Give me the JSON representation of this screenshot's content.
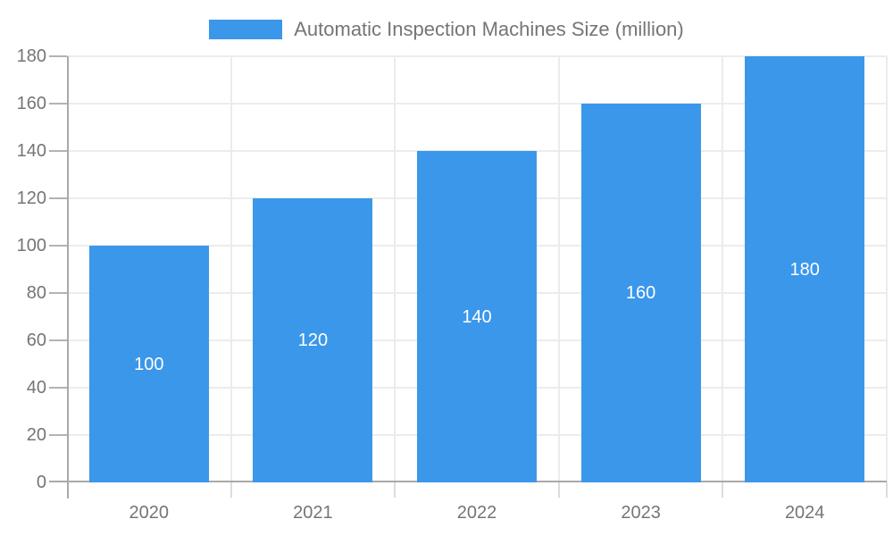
{
  "chart_data": {
    "type": "bar",
    "title": "Automatic Inspection Machines Size (million)",
    "legend": [
      {
        "label": "Automatic Inspection Machines Size (million)"
      }
    ],
    "legend_position": "top-center",
    "categories": [
      "2020",
      "2021",
      "2022",
      "2023",
      "2024"
    ],
    "values": [
      100,
      120,
      140,
      160,
      180
    ],
    "bar_value_labels": [
      "100",
      "120",
      "140",
      "160",
      "180"
    ],
    "xlabel": "",
    "ylabel": "",
    "ylim": [
      0,
      180
    ],
    "ytick_step": 20,
    "yticks": [
      0,
      20,
      40,
      60,
      80,
      100,
      120,
      140,
      160,
      180
    ],
    "grid": true,
    "colors": {
      "bar": "#3B97EA",
      "bar_value_text": "#ffffff",
      "axis_text": "#757575",
      "axis_line": "#a9a9a9",
      "gridline": "#ececec",
      "tick_left": "#b3b3b3",
      "tick_bottom": "#dcdcdc",
      "background": "#ffffff"
    }
  }
}
